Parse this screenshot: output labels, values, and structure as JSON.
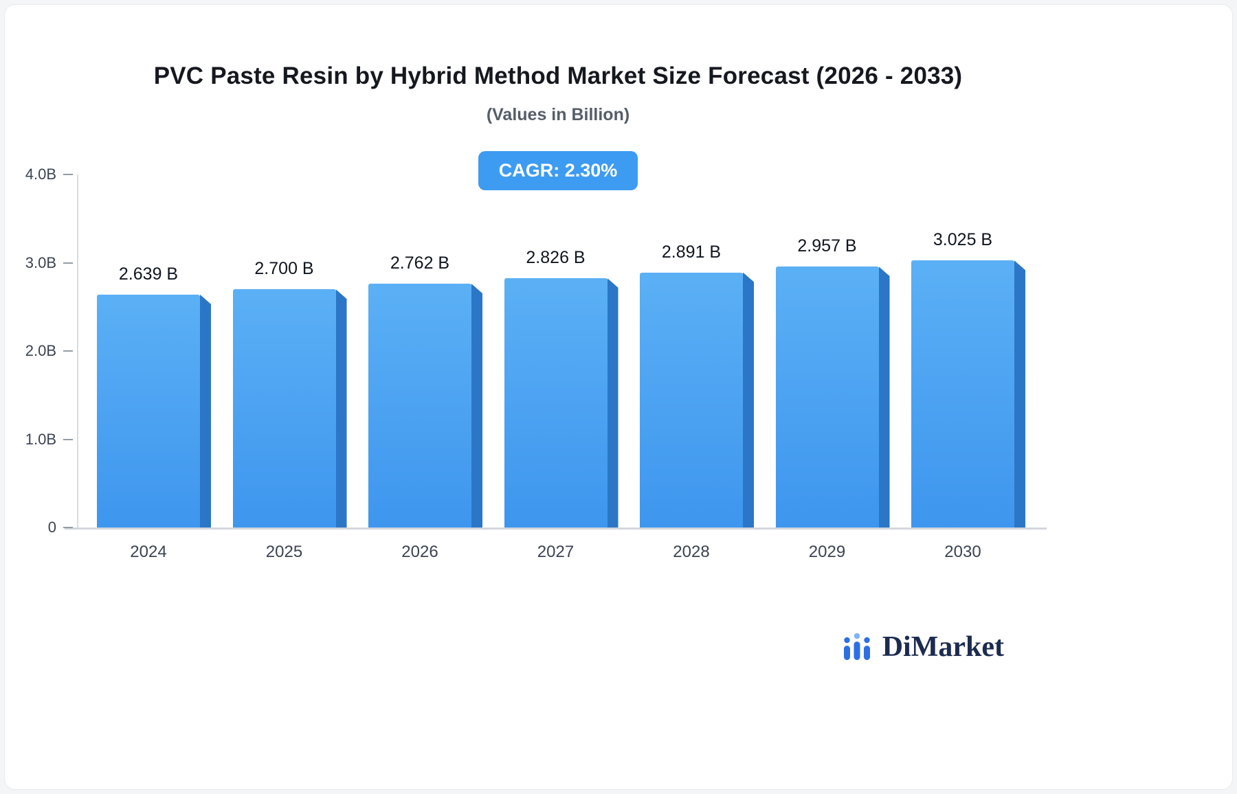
{
  "header": {
    "title": "PVC Paste Resin by Hybrid Method Market Size Forecast (2026 - 2033)",
    "subtitle": "(Values in Billion)",
    "cagr_badge": "CAGR: 2.30%"
  },
  "branding": {
    "name": "DiMarket"
  },
  "chart_data": {
    "type": "bar",
    "title": "PVC Paste Resin by Hybrid Method Market Size Forecast (2026 - 2033)",
    "subtitle": "(Values in Billion)",
    "annotation": "CAGR: 2.30%",
    "categories": [
      "2024",
      "2025",
      "2026",
      "2027",
      "2028",
      "2029",
      "2030"
    ],
    "values": [
      2.639,
      2.7,
      2.762,
      2.826,
      2.891,
      2.957,
      3.025
    ],
    "value_labels": [
      "2.639 B",
      "2.700 B",
      "2.762 B",
      "2.826 B",
      "2.891 B",
      "2.957 B",
      "3.025 B"
    ],
    "xlabel": "",
    "ylabel": "",
    "ylim": [
      0,
      4.0
    ],
    "yticks": [
      {
        "label": "0",
        "value": 0
      },
      {
        "label": "1.0B",
        "value": 1.0
      },
      {
        "label": "2.0B",
        "value": 2.0
      },
      {
        "label": "3.0B",
        "value": 3.0
      },
      {
        "label": "4.0B",
        "value": 4.0
      }
    ],
    "grid": false,
    "legend": false,
    "colors": {
      "bar_face_top": "#5bb0f5",
      "bar_face_bottom": "#3e96ee",
      "bar_side": "#2b76c6",
      "badge_bg": "#3d9bf2",
      "badge_text": "#ffffff",
      "axis": "#d3d7dc",
      "logo_blue": "#2e6fe4",
      "logo_text": "#1d2b50"
    },
    "layout": {
      "first_left": 27,
      "step": 197.5,
      "face_width": 150,
      "side_width": 16
    }
  }
}
